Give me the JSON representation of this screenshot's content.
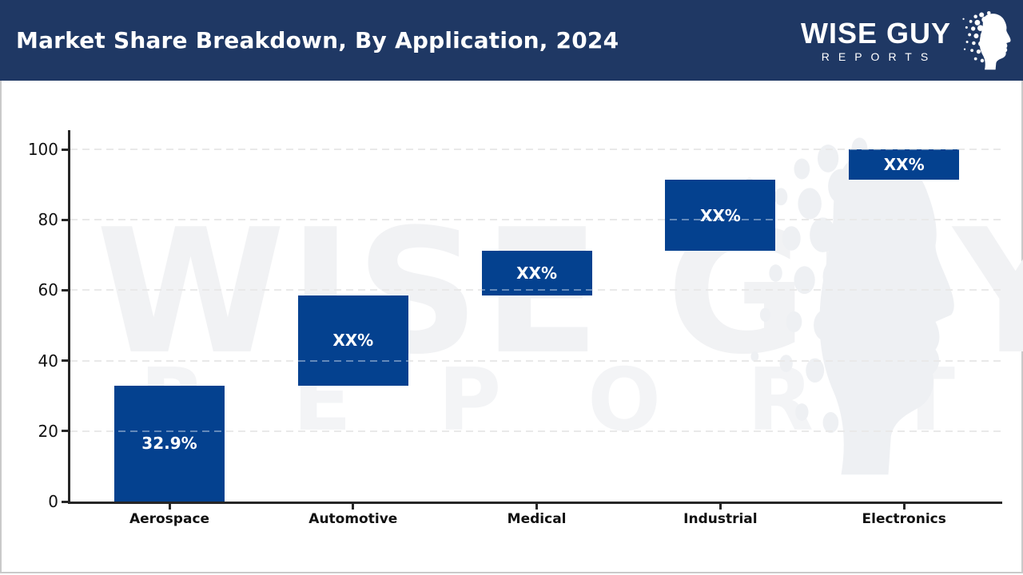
{
  "header": {
    "title": "Market Share Breakdown, By Application, 2024",
    "logo": {
      "line1": "WISE GUY",
      "line2": "REPORTS",
      "icon": "wiseguy-head-icon"
    }
  },
  "watermark": {
    "line1": "WISE GUY",
    "line2": "REPORTS"
  },
  "colors": {
    "header_bg": "#1f3864",
    "bar_fill": "#04418f",
    "bar_label": "#ffffff",
    "axis": "#262626",
    "tick_label": "#111111",
    "grid": "#dcdcdc",
    "watermark": "#eef0f3",
    "page_bg": "#ffffff",
    "border": "#cacaca"
  },
  "chart_data": {
    "type": "bar",
    "subtype": "waterfall",
    "title": "Market Share Breakdown, By Application, 2024",
    "categories": [
      "Aerospace",
      "Automotive",
      "Medical",
      "Industrial",
      "Electronics"
    ],
    "segments": [
      {
        "category": "Aerospace",
        "start": 0,
        "end": 32.9,
        "label": "32.9%"
      },
      {
        "category": "Automotive",
        "start": 32.9,
        "end": 58.6,
        "label": "XX%"
      },
      {
        "category": "Medical",
        "start": 58.6,
        "end": 71.2,
        "label": "XX%"
      },
      {
        "category": "Industrial",
        "start": 71.2,
        "end": 91.3,
        "label": "XX%"
      },
      {
        "category": "Electronics",
        "start": 91.3,
        "end": 100,
        "label": "XX%"
      }
    ],
    "xlabel": "",
    "ylabel": "",
    "ylim": [
      0,
      100
    ],
    "yticks": [
      0,
      20,
      40,
      60,
      80,
      100
    ],
    "grid": true,
    "grid_style": "dashed",
    "legend": false
  }
}
